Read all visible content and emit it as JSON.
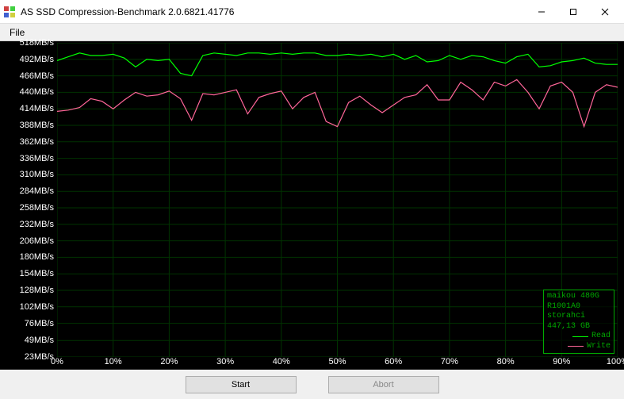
{
  "window": {
    "title": "AS SSD Compression-Benchmark 2.0.6821.41776"
  },
  "menu": {
    "file": "File"
  },
  "chart": {
    "type": "line",
    "background_color": "#000000",
    "grid_color": "#003300",
    "axis_label_color": "#ffffff",
    "label_fontsize": 11,
    "y_unit": "MB/s",
    "y_min": 23,
    "y_max": 518,
    "y_ticks": [
      518,
      492,
      466,
      440,
      414,
      388,
      362,
      336,
      310,
      284,
      258,
      232,
      206,
      180,
      154,
      128,
      102,
      76,
      49,
      23
    ],
    "x_min": 0,
    "x_max": 100,
    "x_ticks": [
      0,
      10,
      20,
      30,
      40,
      50,
      60,
      70,
      80,
      90,
      100
    ],
    "x_unit": "%",
    "series": {
      "read": {
        "label": "Read",
        "color": "#00ff00",
        "points": [
          [
            0,
            490
          ],
          [
            2,
            496
          ],
          [
            4,
            502
          ],
          [
            6,
            498
          ],
          [
            8,
            498
          ],
          [
            10,
            500
          ],
          [
            12,
            494
          ],
          [
            14,
            480
          ],
          [
            16,
            492
          ],
          [
            18,
            490
          ],
          [
            20,
            492
          ],
          [
            22,
            470
          ],
          [
            24,
            466
          ],
          [
            26,
            498
          ],
          [
            28,
            502
          ],
          [
            30,
            500
          ],
          [
            32,
            498
          ],
          [
            34,
            502
          ],
          [
            36,
            502
          ],
          [
            38,
            500
          ],
          [
            40,
            502
          ],
          [
            42,
            500
          ],
          [
            44,
            502
          ],
          [
            46,
            502
          ],
          [
            48,
            498
          ],
          [
            50,
            498
          ],
          [
            52,
            500
          ],
          [
            54,
            498
          ],
          [
            56,
            500
          ],
          [
            58,
            496
          ],
          [
            60,
            500
          ],
          [
            62,
            492
          ],
          [
            64,
            498
          ],
          [
            66,
            488
          ],
          [
            68,
            490
          ],
          [
            70,
            498
          ],
          [
            72,
            492
          ],
          [
            74,
            498
          ],
          [
            76,
            496
          ],
          [
            78,
            490
          ],
          [
            80,
            486
          ],
          [
            82,
            496
          ],
          [
            84,
            500
          ],
          [
            86,
            480
          ],
          [
            88,
            482
          ],
          [
            90,
            488
          ],
          [
            92,
            490
          ],
          [
            94,
            494
          ],
          [
            96,
            486
          ],
          [
            98,
            484
          ],
          [
            100,
            484
          ]
        ]
      },
      "write": {
        "label": "Write",
        "color": "#ff6699",
        "points": [
          [
            0,
            410
          ],
          [
            2,
            412
          ],
          [
            4,
            416
          ],
          [
            6,
            430
          ],
          [
            8,
            426
          ],
          [
            10,
            414
          ],
          [
            12,
            428
          ],
          [
            14,
            440
          ],
          [
            16,
            434
          ],
          [
            18,
            436
          ],
          [
            20,
            442
          ],
          [
            22,
            430
          ],
          [
            24,
            396
          ],
          [
            26,
            438
          ],
          [
            28,
            436
          ],
          [
            30,
            440
          ],
          [
            32,
            444
          ],
          [
            34,
            406
          ],
          [
            36,
            432
          ],
          [
            38,
            438
          ],
          [
            40,
            442
          ],
          [
            42,
            414
          ],
          [
            44,
            432
          ],
          [
            46,
            440
          ],
          [
            48,
            394
          ],
          [
            50,
            386
          ],
          [
            52,
            424
          ],
          [
            54,
            434
          ],
          [
            56,
            420
          ],
          [
            58,
            408
          ],
          [
            60,
            420
          ],
          [
            62,
            432
          ],
          [
            64,
            436
          ],
          [
            66,
            452
          ],
          [
            68,
            428
          ],
          [
            70,
            428
          ],
          [
            72,
            456
          ],
          [
            74,
            444
          ],
          [
            76,
            428
          ],
          [
            78,
            456
          ],
          [
            80,
            450
          ],
          [
            82,
            460
          ],
          [
            84,
            440
          ],
          [
            86,
            414
          ],
          [
            88,
            450
          ],
          [
            90,
            456
          ],
          [
            92,
            440
          ],
          [
            94,
            386
          ],
          [
            96,
            440
          ],
          [
            98,
            452
          ],
          [
            100,
            448
          ]
        ]
      }
    }
  },
  "info": {
    "device": "maikou  480G",
    "firmware": "R1001A0",
    "driver": "storahci",
    "capacity": "447,13 GB"
  },
  "buttons": {
    "start": "Start",
    "abort": "Abort"
  }
}
